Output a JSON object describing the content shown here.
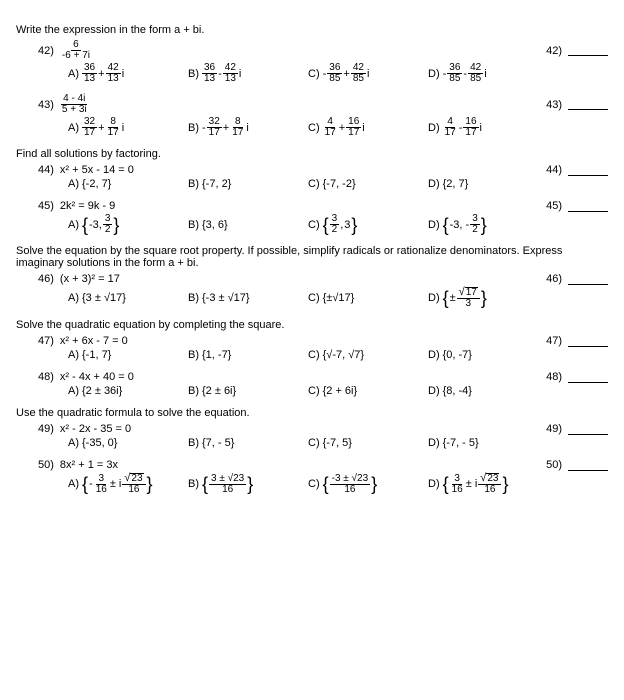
{
  "sections": {
    "s1": "Write the expression in the form a + bi.",
    "s2": "Find all solutions by factoring.",
    "s3": "Solve the equation by the square root property. If possible, simplify radicals or rationalize denominators. Express imaginary solutions in the form a + bi.",
    "s4": "Solve the quadratic equation by completing the square.",
    "s5": "Use the quadratic formula to solve the equation."
  },
  "labels": {
    "A": "A)",
    "B": "B)",
    "C": "C)",
    "D": "D)"
  },
  "q42": {
    "num": "42)",
    "expr_num": "6",
    "expr_den": "-6 + 7i",
    "A": {
      "a": "36",
      "b": "13",
      "c": "42",
      "d": "13",
      "op": "+",
      "suf": "i"
    },
    "B": {
      "a": "36",
      "b": "13",
      "c": "42",
      "d": "13",
      "op": "-",
      "pre": "",
      "suf": "i"
    },
    "C": {
      "a": "36",
      "b": "85",
      "c": "42",
      "d": "85",
      "op": "+",
      "pre": "- ",
      "suf": "i"
    },
    "D": {
      "a": "36",
      "b": "85",
      "c": "42",
      "d": "85",
      "op": "-",
      "pre": "- ",
      "suf": "i"
    }
  },
  "q43": {
    "num": "43)",
    "expr_num": "4 - 4i",
    "expr_den": "5 + 3i",
    "A": {
      "a": "32",
      "b": "17",
      "c": "8",
      "d": "17",
      "op": "+",
      "suf": "i"
    },
    "B": {
      "a": "32",
      "b": "17",
      "c": "8",
      "d": "17",
      "op": "+",
      "pre": "- ",
      "suf": "i"
    },
    "C": {
      "a": "4",
      "b": "17",
      "c": "16",
      "d": "17",
      "op": "+",
      "suf": "i"
    },
    "D": {
      "a": "4",
      "b": "17",
      "c": "16",
      "d": "17",
      "op": "-",
      "suf": "i"
    }
  },
  "q44": {
    "num": "44)",
    "expr": "x² + 5x - 14 = 0",
    "A": "{-2, 7}",
    "B": "{-7, 2}",
    "C": "{-7, -2}",
    "D": "{2, 7}"
  },
  "q45": {
    "num": "45)",
    "expr": "2k² = 9k - 9",
    "A_pre": "-3,",
    "A_n": "3",
    "A_d": "2",
    "B": "{3, 6}",
    "C_n1": "3",
    "C_d1": "2",
    "C_v2": "3",
    "D_pre": "-3, -",
    "D_n": "3",
    "D_d": "2"
  },
  "q46": {
    "num": "46)",
    "expr": "(x + 3)² = 17",
    "A": "{3 ± √17}",
    "B": "{-3 ± √17}",
    "C": "{±√17}",
    "D_pre": "±",
    "D_num": "17",
    "D_den": "3"
  },
  "q47": {
    "num": "47)",
    "expr": "x² + 6x - 7 = 0",
    "A": "{-1, 7}",
    "B": "{1, -7}",
    "C": "{√-7, √7}",
    "D": "{0, -7}"
  },
  "q48": {
    "num": "48)",
    "expr": "x² - 4x + 40 = 0",
    "A": "{2 ± 36i}",
    "B": "{2 ± 6i}",
    "C": "{2 + 6i}",
    "D": "{8, -4}"
  },
  "q49": {
    "num": "49)",
    "expr": "x² - 2x - 35 = 0",
    "A": "{-35, 0}",
    "B": "{7, - 5}",
    "C": "{-7, 5}",
    "D": "{-7, - 5}"
  },
  "q50": {
    "num": "50)",
    "expr": "8x² + 1 = 3x",
    "A": {
      "pre": "- ",
      "a": "3",
      "b": "16",
      "op": "± i",
      "rn": "23",
      "rd": "16"
    },
    "B": {
      "n": "3 ± √23",
      "d": "16"
    },
    "C": {
      "n": "-3 ± √23",
      "d": "16"
    },
    "D": {
      "a": "3",
      "b": "16",
      "op": "± i",
      "rn": "23",
      "rd": "16"
    }
  }
}
